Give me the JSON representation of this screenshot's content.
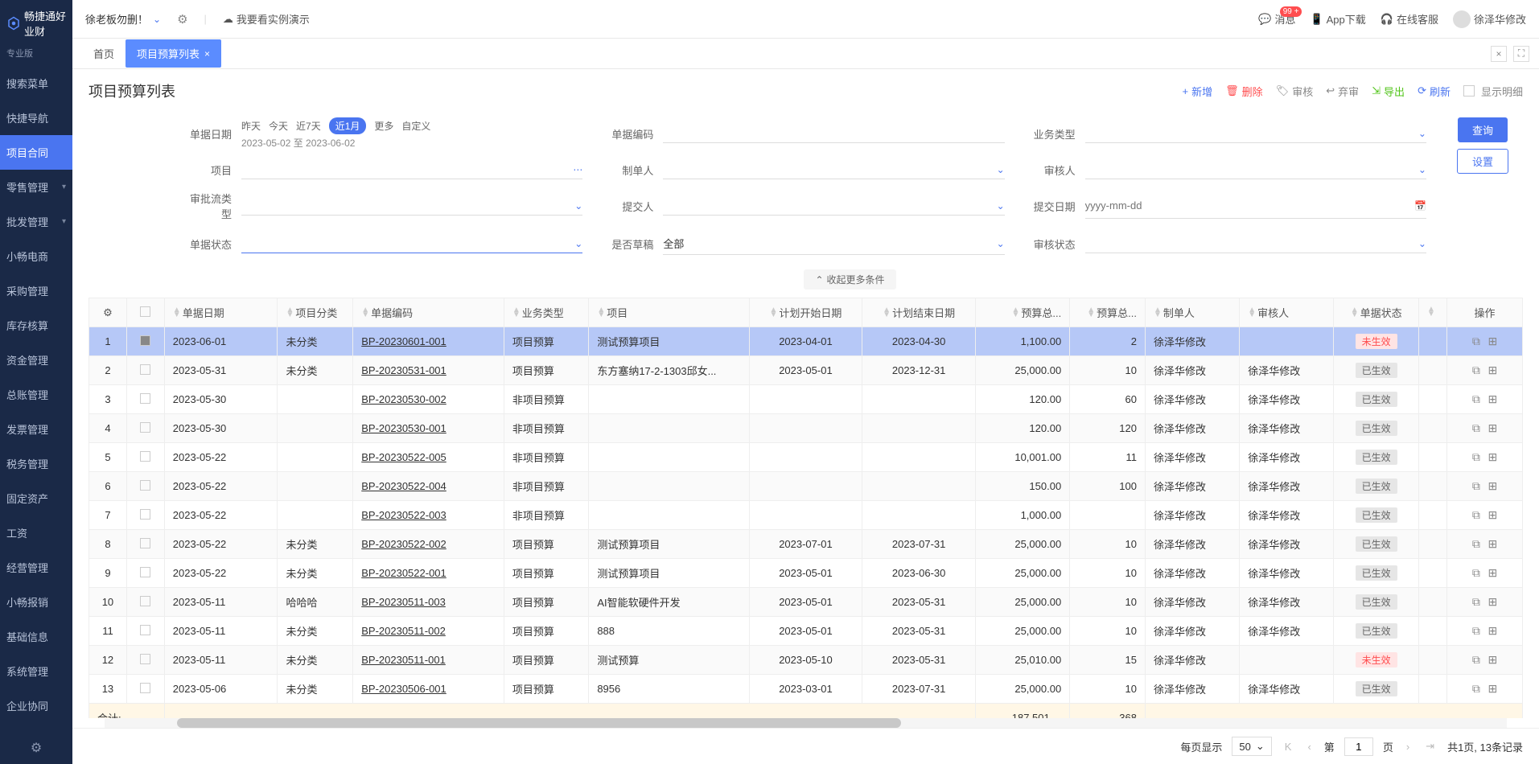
{
  "brand": {
    "name": "畅捷通好业财",
    "edition": "专业版"
  },
  "sidebar": {
    "items": [
      {
        "label": "搜索菜单"
      },
      {
        "label": "快捷导航"
      },
      {
        "label": "项目合同",
        "active": true
      },
      {
        "label": "零售管理",
        "expandable": true
      },
      {
        "label": "批发管理",
        "expandable": true
      },
      {
        "label": "小畅电商"
      },
      {
        "label": "采购管理"
      },
      {
        "label": "库存核算"
      },
      {
        "label": "资金管理"
      },
      {
        "label": "总账管理"
      },
      {
        "label": "发票管理"
      },
      {
        "label": "税务管理"
      },
      {
        "label": "固定资产"
      },
      {
        "label": "工资"
      },
      {
        "label": "经营管理"
      },
      {
        "label": "小畅报销"
      },
      {
        "label": "基础信息"
      },
      {
        "label": "系统管理"
      },
      {
        "label": "企业协同"
      },
      {
        "label": "新手引导"
      }
    ]
  },
  "topbar": {
    "title": "徐老板勿删！",
    "demo": "我要看实例演示",
    "msg": "消息",
    "msg_badge": "99 +",
    "app": "App下载",
    "service": "在线客服",
    "user": "徐泽华修改"
  },
  "tabs": {
    "home": "首页",
    "active": "项目预算列表"
  },
  "page": {
    "title": "项目预算列表",
    "actions": {
      "add": "新增",
      "del": "删除",
      "audit": "审核",
      "abandon": "弃审",
      "export": "导出",
      "refresh": "刷新",
      "detail": "显示明细"
    }
  },
  "filter": {
    "labels": {
      "doc_date": "单据日期",
      "doc_no": "单据编码",
      "biz_type": "业务类型",
      "project": "项目",
      "maker": "制单人",
      "auditor": "审核人",
      "flow_type": "审批流类型",
      "submitter": "提交人",
      "submit_date": "提交日期",
      "doc_status": "单据状态",
      "is_draft": "是否草稿",
      "audit_status": "审核状态"
    },
    "date_chips": [
      "昨天",
      "今天",
      "近7天",
      "近1月",
      "更多",
      "自定义"
    ],
    "date_active_idx": 3,
    "date_range": "2023-05-02 至 2023-06-02",
    "is_draft_value": "全部",
    "submit_date_placeholder": "yyyy-mm-dd",
    "collapse": "收起更多条件",
    "query": "查询",
    "settings": "设置"
  },
  "table": {
    "columns": {
      "doc_date": "单据日期",
      "category": "项目分类",
      "code": "单据编码",
      "biz_type": "业务类型",
      "project": "项目",
      "start": "计划开始日期",
      "end": "计划结束日期",
      "amount": "预算总...",
      "count": "预算总...",
      "maker": "制单人",
      "auditor": "审核人",
      "status": "单据状态",
      "ops": "操作"
    },
    "rows": [
      {
        "date": "2023-06-01",
        "cat": "未分类",
        "code": "BP-20230601-001",
        "biz": "项目预算",
        "proj": "测试预算项目",
        "start": "2023-04-01",
        "end": "2023-04-30",
        "amt": "1,100.00",
        "cnt": "2",
        "maker": "徐泽华修改",
        "auditor": "",
        "status": "未生效",
        "selected": true
      },
      {
        "date": "2023-05-31",
        "cat": "未分类",
        "code": "BP-20230531-001",
        "biz": "项目预算",
        "proj": "东方塞纳17-2-1303邱女...",
        "start": "2023-05-01",
        "end": "2023-12-31",
        "amt": "25,000.00",
        "cnt": "10",
        "maker": "徐泽华修改",
        "auditor": "徐泽华修改",
        "status": "已生效"
      },
      {
        "date": "2023-05-30",
        "cat": "",
        "code": "BP-20230530-002",
        "biz": "非项目预算",
        "proj": "",
        "start": "",
        "end": "",
        "amt": "120.00",
        "cnt": "60",
        "maker": "徐泽华修改",
        "auditor": "徐泽华修改",
        "status": "已生效"
      },
      {
        "date": "2023-05-30",
        "cat": "",
        "code": "BP-20230530-001",
        "biz": "非项目预算",
        "proj": "",
        "start": "",
        "end": "",
        "amt": "120.00",
        "cnt": "120",
        "maker": "徐泽华修改",
        "auditor": "徐泽华修改",
        "status": "已生效"
      },
      {
        "date": "2023-05-22",
        "cat": "",
        "code": "BP-20230522-005",
        "biz": "非项目预算",
        "proj": "",
        "start": "",
        "end": "",
        "amt": "10,001.00",
        "cnt": "11",
        "maker": "徐泽华修改",
        "auditor": "徐泽华修改",
        "status": "已生效"
      },
      {
        "date": "2023-05-22",
        "cat": "",
        "code": "BP-20230522-004",
        "biz": "非项目预算",
        "proj": "",
        "start": "",
        "end": "",
        "amt": "150.00",
        "cnt": "100",
        "maker": "徐泽华修改",
        "auditor": "徐泽华修改",
        "status": "已生效"
      },
      {
        "date": "2023-05-22",
        "cat": "",
        "code": "BP-20230522-003",
        "biz": "非项目预算",
        "proj": "",
        "start": "",
        "end": "",
        "amt": "1,000.00",
        "cnt": "",
        "maker": "徐泽华修改",
        "auditor": "徐泽华修改",
        "status": "已生效"
      },
      {
        "date": "2023-05-22",
        "cat": "未分类",
        "code": "BP-20230522-002",
        "biz": "项目预算",
        "proj": "测试预算项目",
        "start": "2023-07-01",
        "end": "2023-07-31",
        "amt": "25,000.00",
        "cnt": "10",
        "maker": "徐泽华修改",
        "auditor": "徐泽华修改",
        "status": "已生效"
      },
      {
        "date": "2023-05-22",
        "cat": "未分类",
        "code": "BP-20230522-001",
        "biz": "项目预算",
        "proj": "测试预算项目",
        "start": "2023-05-01",
        "end": "2023-06-30",
        "amt": "25,000.00",
        "cnt": "10",
        "maker": "徐泽华修改",
        "auditor": "徐泽华修改",
        "status": "已生效"
      },
      {
        "date": "2023-05-11",
        "cat": "哈哈哈",
        "code": "BP-20230511-003",
        "biz": "项目预算",
        "proj": "AI智能软硬件开发",
        "start": "2023-05-01",
        "end": "2023-05-31",
        "amt": "25,000.00",
        "cnt": "10",
        "maker": "徐泽华修改",
        "auditor": "徐泽华修改",
        "status": "已生效"
      },
      {
        "date": "2023-05-11",
        "cat": "未分类",
        "code": "BP-20230511-002",
        "biz": "项目预算",
        "proj": "888",
        "start": "2023-05-01",
        "end": "2023-05-31",
        "amt": "25,000.00",
        "cnt": "10",
        "maker": "徐泽华修改",
        "auditor": "徐泽华修改",
        "status": "已生效"
      },
      {
        "date": "2023-05-11",
        "cat": "未分类",
        "code": "BP-20230511-001",
        "biz": "项目预算",
        "proj": "测试预算",
        "start": "2023-05-10",
        "end": "2023-05-31",
        "amt": "25,010.00",
        "cnt": "15",
        "maker": "徐泽华修改",
        "auditor": "",
        "status": "未生效"
      },
      {
        "date": "2023-05-06",
        "cat": "未分类",
        "code": "BP-20230506-001",
        "biz": "项目预算",
        "proj": "8956",
        "start": "2023-03-01",
        "end": "2023-07-31",
        "amt": "25,000.00",
        "cnt": "10",
        "maker": "徐泽华修改",
        "auditor": "徐泽华修改",
        "status": "已生效"
      }
    ],
    "footer": {
      "label": "合计:",
      "amount": "187,501....",
      "count": "368"
    }
  },
  "pagination": {
    "per_page_label": "每页显示",
    "per_page": "50",
    "page_label_pre": "第",
    "page": "1",
    "page_label_post": "页",
    "summary": "共1页, 13条记录"
  }
}
